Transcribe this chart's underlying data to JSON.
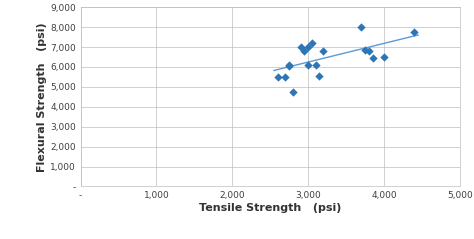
{
  "scatter_x": [
    2600,
    2700,
    2750,
    2750,
    2800,
    2900,
    2950,
    3000,
    3000,
    3050,
    3100,
    3150,
    3200,
    3700,
    3750,
    3800,
    3850,
    4000,
    4400
  ],
  "scatter_y": [
    5500,
    5500,
    6050,
    6100,
    4750,
    7000,
    6800,
    7000,
    6100,
    7200,
    6100,
    5550,
    6800,
    8000,
    6850,
    6800,
    6450,
    6500,
    7750
  ],
  "marker_color": "#2E75B6",
  "marker_size": 18,
  "trendline_color": "#5B9BD5",
  "xlabel": "Tensile Strength   (psi)",
  "ylabel": "Flexural Strength   (psi)",
  "xlim": [
    0,
    5000
  ],
  "ylim": [
    0,
    9000
  ],
  "xticks": [
    0,
    1000,
    2000,
    3000,
    4000,
    5000
  ],
  "yticks": [
    0,
    1000,
    2000,
    3000,
    4000,
    5000,
    6000,
    7000,
    8000,
    9000
  ],
  "xtick_labels": [
    "-",
    "1,000",
    "2,000",
    "3,000",
    "4,000",
    "5,000"
  ],
  "ytick_labels": [
    "-",
    "1,000",
    "2,000",
    "3,000",
    "4,000",
    "5,000",
    "6,000",
    "7,000",
    "8,000",
    "9,000"
  ],
  "bg_color": "#FFFFFF",
  "grid_color": "#BEBEBE",
  "axis_label_fontsize": 8,
  "tick_fontsize": 6.5,
  "trendline_x_start": 2550,
  "trendline_x_end": 4450
}
